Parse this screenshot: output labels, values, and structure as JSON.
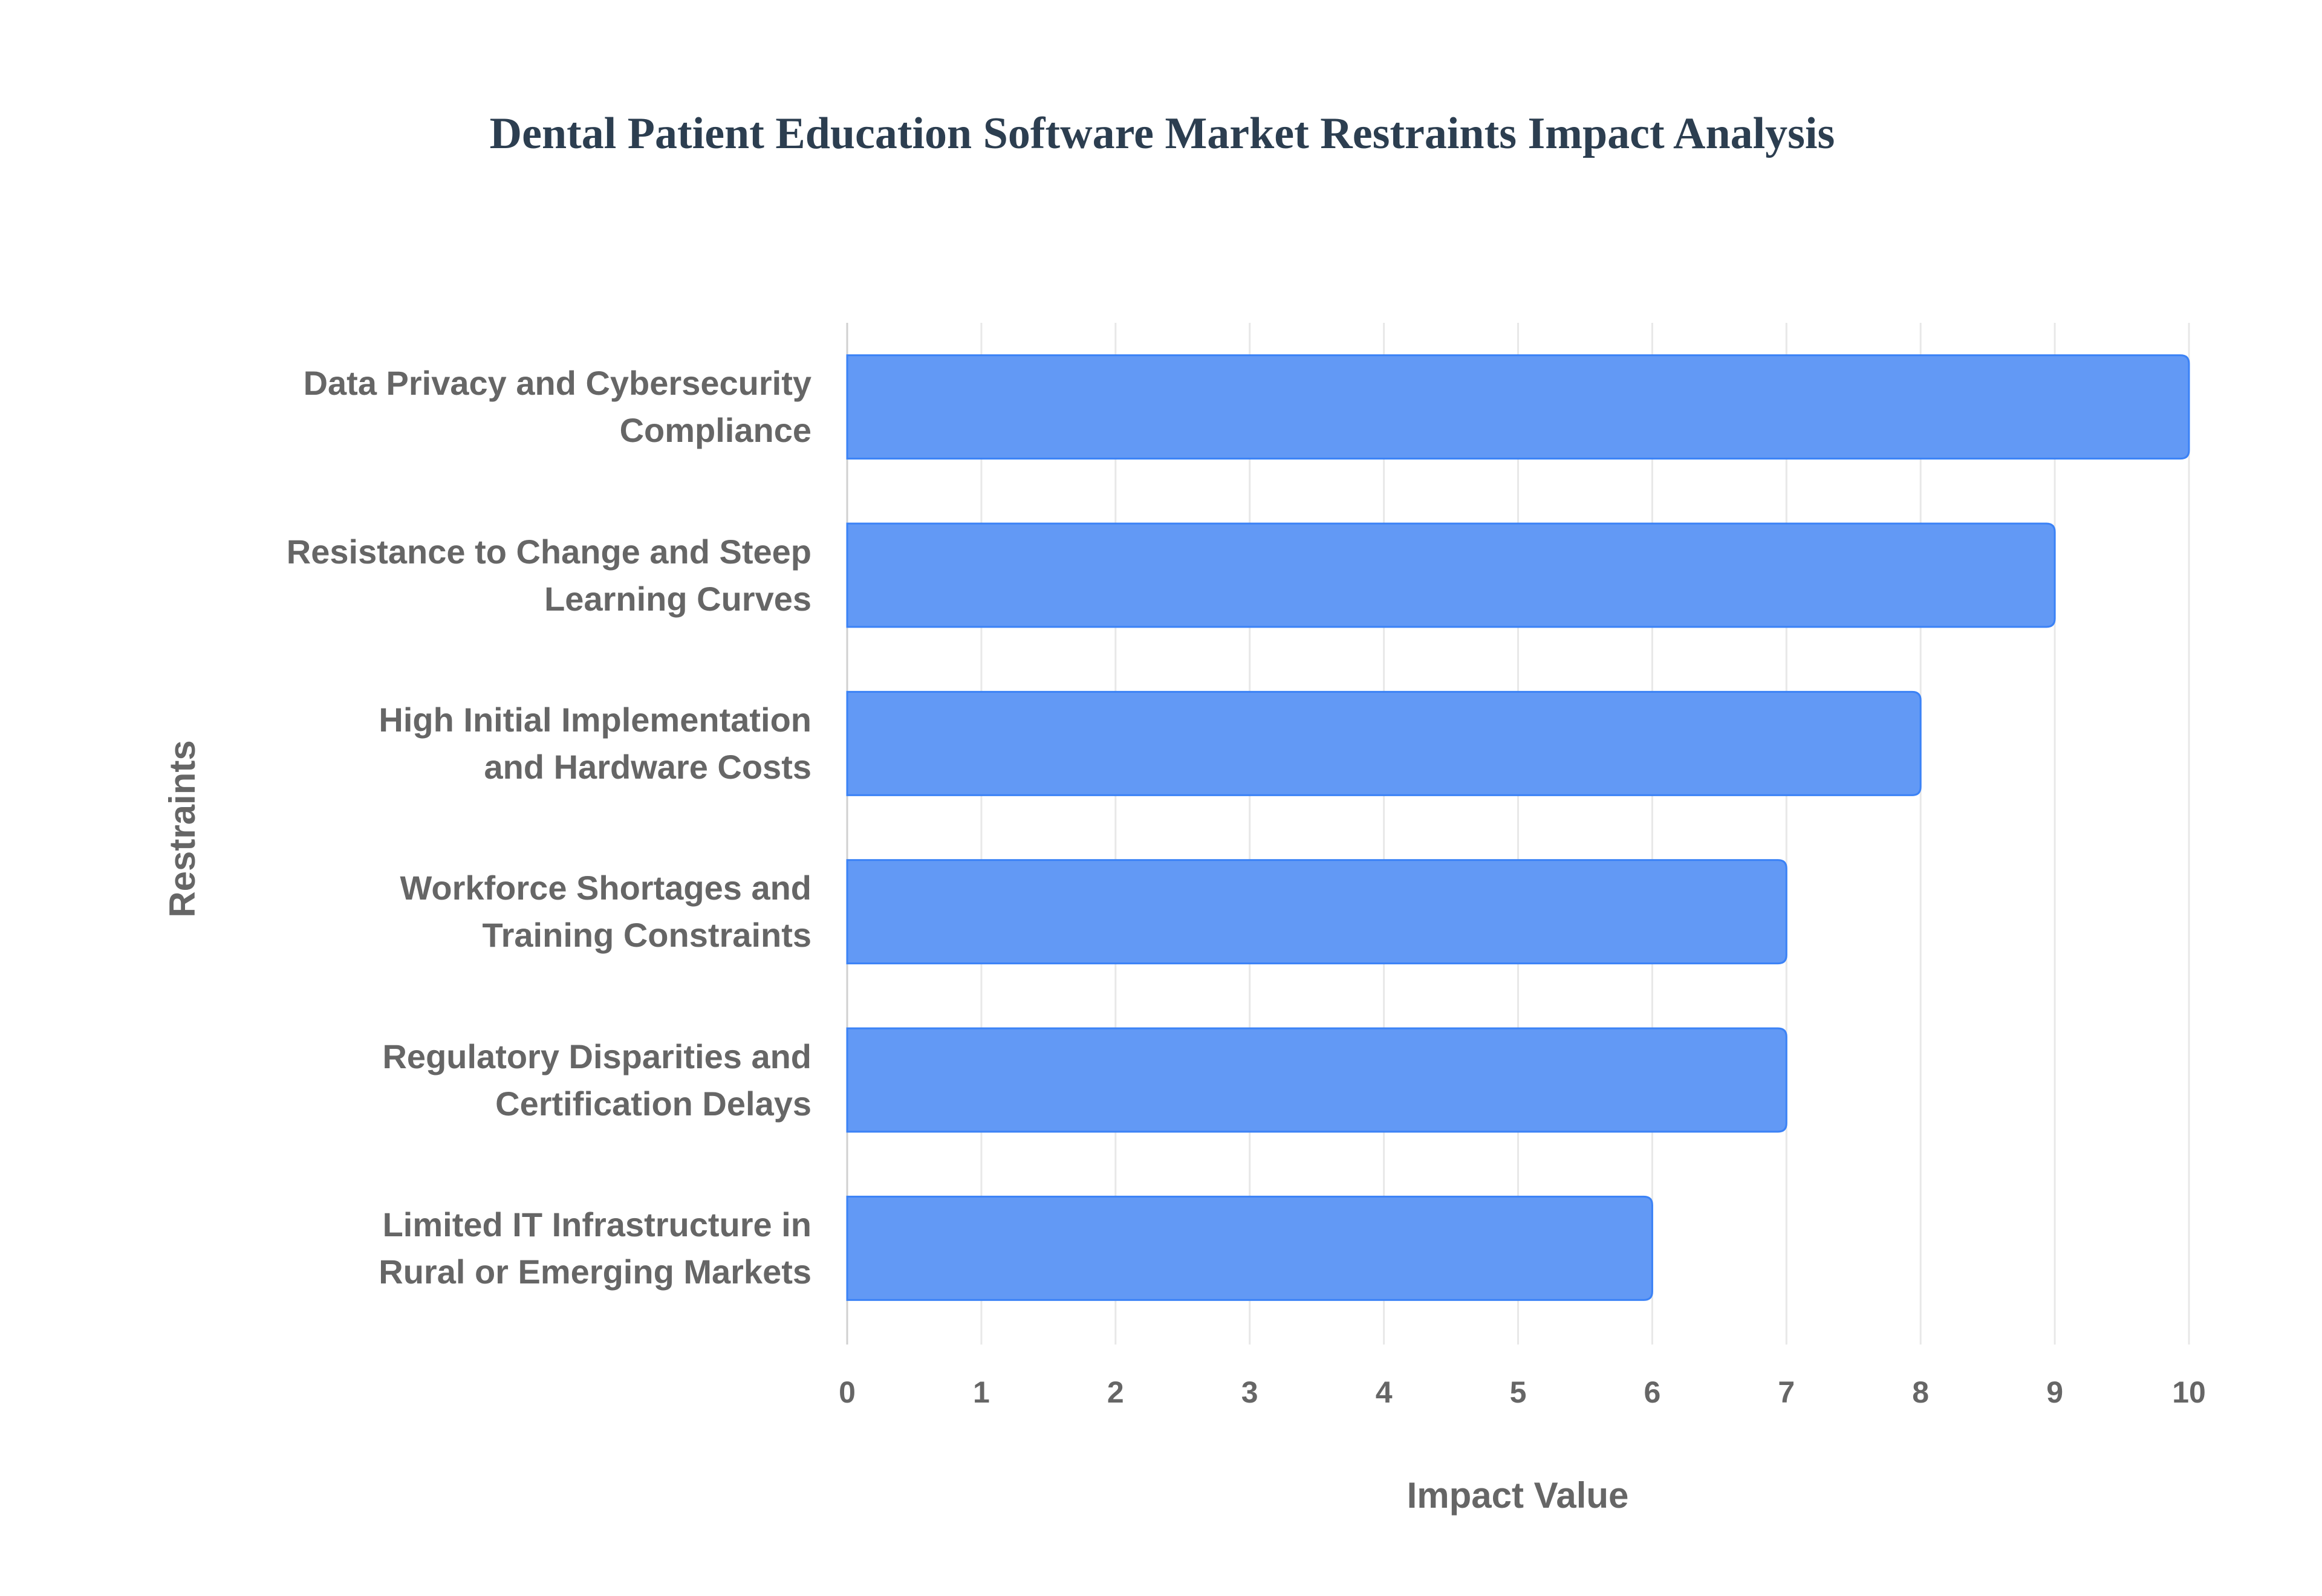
{
  "chart_data": {
    "type": "bar",
    "orientation": "horizontal",
    "title": "Dental Patient Education Software Market Restraints Impact Analysis",
    "x_label": "Impact Value",
    "y_label": "Restraints",
    "categories": [
      "Data Privacy and Cybersecurity Compliance",
      "Resistance to Change and Steep Learning Curves",
      "High Initial Implementation and Hardware Costs",
      "Workforce Shortages and Training Constraints",
      "Regulatory Disparities and Certification Delays",
      "Limited IT Infrastructure in Rural or Emerging Markets"
    ],
    "values": [
      10,
      9,
      8,
      7,
      7,
      6
    ],
    "color": "#6299f5",
    "xlim": [
      0,
      10
    ],
    "xticks": [
      0,
      1,
      2,
      3,
      4,
      5,
      6,
      7,
      8,
      9,
      10
    ],
    "grid": true
  }
}
